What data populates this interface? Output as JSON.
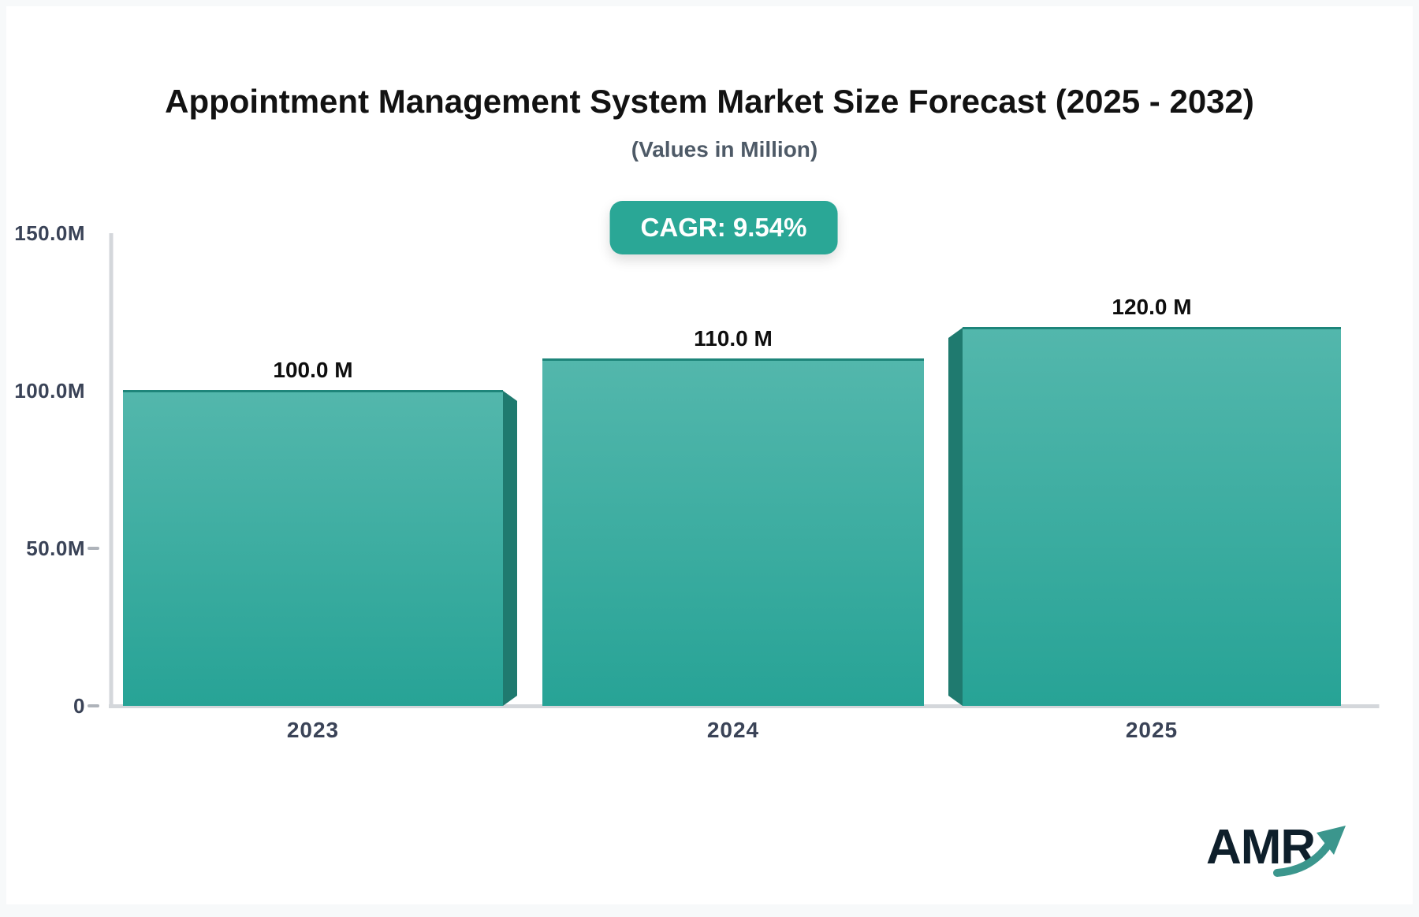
{
  "header": {
    "title": "Appointment Management System Market Size Forecast (2025 - 2032)",
    "subtitle": "(Values in Million)"
  },
  "badge": {
    "label": "CAGR: 9.54%",
    "background": "#2aa796",
    "text_color": "#ffffff"
  },
  "chart_data": {
    "type": "bar",
    "title": "Appointment Management System Market Size Forecast (2025 - 2032)",
    "subtitle": "(Values in Million)",
    "unit": "Million",
    "categories": [
      "2023",
      "2024",
      "2025"
    ],
    "values": [
      100.0,
      110.0,
      120.0
    ],
    "value_labels": [
      "100.0 M",
      "110.0 M",
      "120.0 M"
    ],
    "cagr": "9.54%",
    "ylim": [
      0,
      150
    ],
    "yticks": [
      {
        "value": 150,
        "label": "150.0M"
      },
      {
        "value": 100,
        "label": "100.0M"
      },
      {
        "value": 50,
        "label": "50.0M"
      },
      {
        "value": 0,
        "label": "0"
      }
    ],
    "grid": false,
    "legend_position": "none",
    "colors": {
      "bar_gradient_top": "#53b7ac",
      "bar_gradient_bottom": "#27a396",
      "bar_side": "#1f7a6f",
      "bar_top_edge": "#1e857a",
      "axis_line": "#d4d7db",
      "tick_dash": "#aeb3ba",
      "axis_label": "#3a4357",
      "value_label": "#0e0e0e"
    }
  },
  "logo": {
    "text": "AMR",
    "text_color": "#0e1f2b",
    "arrow_color": "#3b968d"
  }
}
